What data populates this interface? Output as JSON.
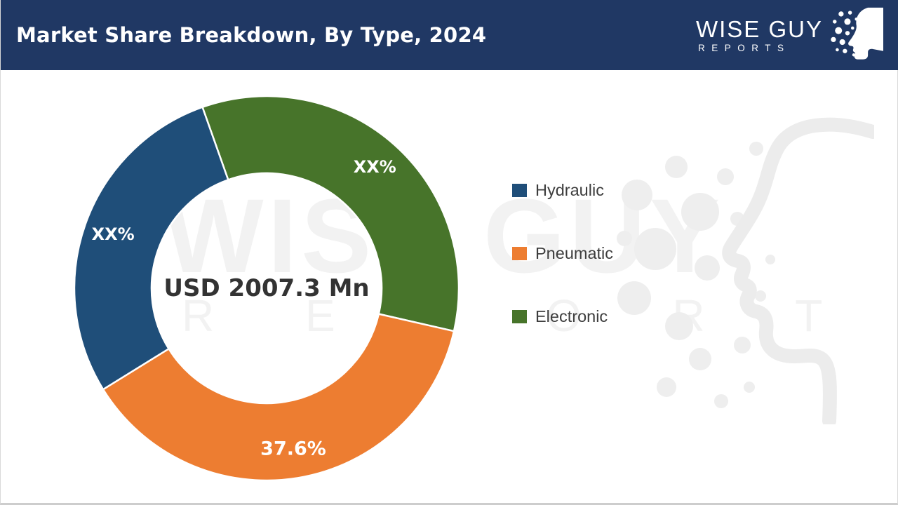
{
  "header": {
    "bg_color": "#203864",
    "title": "Market Share Breakdown, By Type, 2024",
    "logo": {
      "name": "WISE GUY",
      "sub": "REPORTS"
    }
  },
  "chart_data": {
    "type": "pie",
    "subtype": "donut",
    "title": "Market Share Breakdown, By Type, 2024",
    "center_label": "USD 2007.3 Mn",
    "legend_position": "right",
    "start_angle_deg": -19.5,
    "slices": [
      {
        "name": "Electronic",
        "value": 34.0,
        "display_label": "XX%",
        "color": "#47742A"
      },
      {
        "name": "Pneumatic",
        "value": 37.6,
        "display_label": "37.6%",
        "color": "#ED7D31"
      },
      {
        "name": "Hydraulic",
        "value": 28.4,
        "display_label": "XX%",
        "color": "#1F4E79"
      }
    ]
  },
  "legend": {
    "items": [
      {
        "label": "Hydraulic",
        "color": "#1F4E79"
      },
      {
        "label": "Pneumatic",
        "color": "#ED7D31"
      },
      {
        "label": "Electronic",
        "color": "#47742A"
      }
    ]
  },
  "watermark": {
    "line1": "WISE GUY",
    "line2": "R E P O R T S"
  }
}
